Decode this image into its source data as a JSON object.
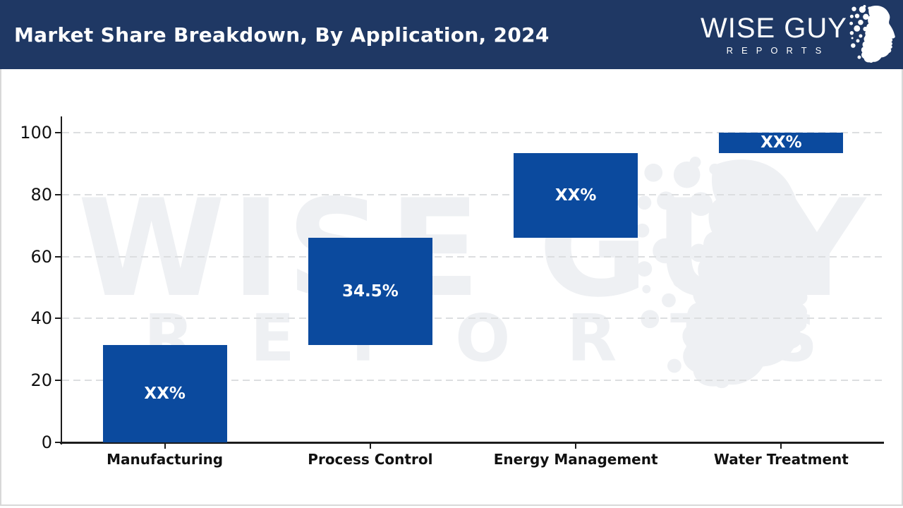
{
  "header": {
    "title": "Market Share Breakdown, By Application, 2024",
    "background_color": "#1f3864",
    "logo": {
      "line1": "WISE GUY",
      "line2": "REPORTS"
    }
  },
  "watermark": {
    "line1": "WISE GUY",
    "line2": "REPORTS"
  },
  "chart_data": {
    "type": "bar",
    "subtype": "floating-segment-waterfall",
    "title": "Market Share Breakdown, By Application, 2024",
    "categories": [
      "Manufacturing",
      "Process Control",
      "Energy Management",
      "Water Treatment"
    ],
    "bars": [
      {
        "category": "Manufacturing",
        "start": 0,
        "end": 31.5,
        "value": 31.5,
        "label": "XX%"
      },
      {
        "category": "Process Control",
        "start": 31.5,
        "end": 66,
        "value": 34.5,
        "label": "34.5%"
      },
      {
        "category": "Energy Management",
        "start": 66,
        "end": 93.5,
        "value": 27.5,
        "label": "XX%"
      },
      {
        "category": "Water Treatment",
        "start": 93.5,
        "end": 100,
        "value": 6.5,
        "label": "XX%"
      }
    ],
    "xlabel": "",
    "ylabel": "",
    "ylim": [
      0,
      105
    ],
    "yticks": [
      0,
      20,
      40,
      60,
      80,
      100
    ],
    "grid": "horizontal-dashed",
    "legend": "none",
    "bar_color": "#0b4a9e",
    "bar_label_color": "#ffffff",
    "axis_color": "#1c1c1c",
    "gridline_color": "#dcdee0"
  }
}
